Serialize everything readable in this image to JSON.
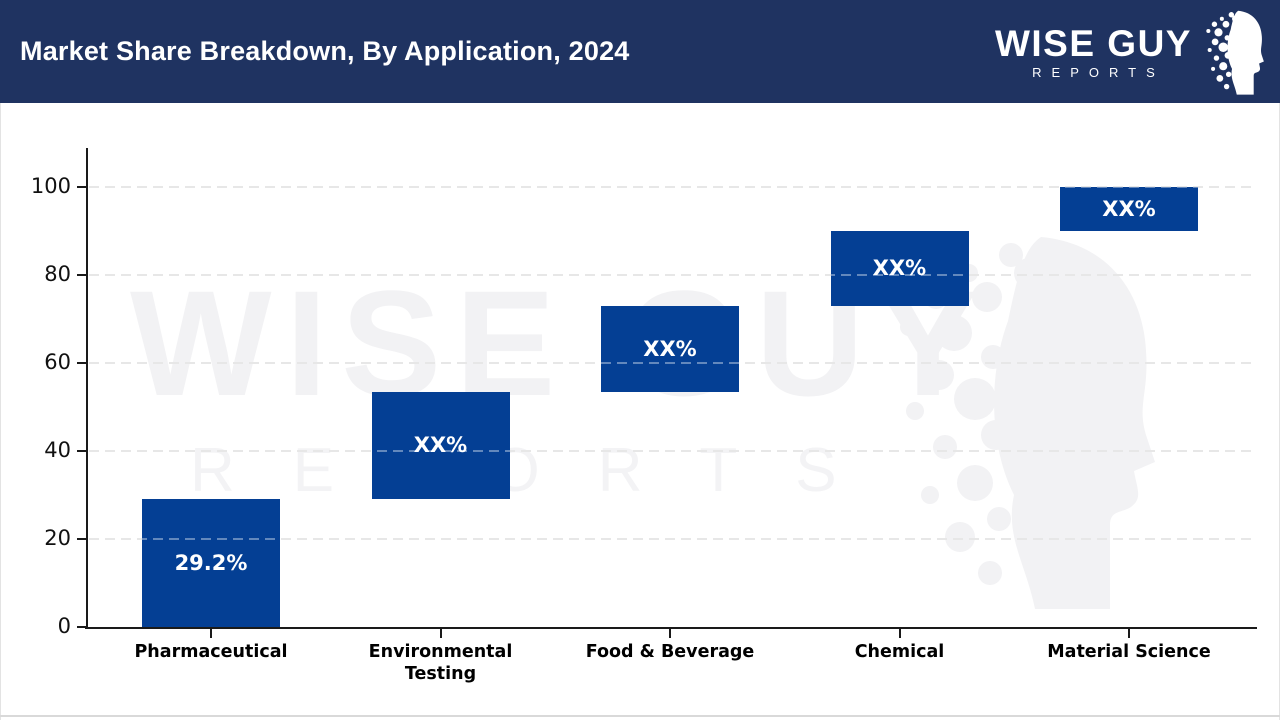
{
  "header": {
    "title": "Market Share Breakdown, By Application, 2024",
    "logo": {
      "wordmark": "WISE GUY",
      "subtext": "REPORTS",
      "icon": "face-profile-dots-icon"
    }
  },
  "watermark": {
    "wordmark": "WISE GUY",
    "subtext": "REPORTS",
    "icon": "face-profile-dots-icon"
  },
  "chart_data": {
    "type": "bar",
    "variant": "waterfall",
    "title": "Market Share Breakdown, By Application, 2024",
    "categories": [
      "Pharmaceutical",
      "Environmental\nTesting",
      "Food & Beverage",
      "Chemical",
      "Material Science"
    ],
    "segments": [
      {
        "category": "Pharmaceutical",
        "from": 0,
        "to": 29.2,
        "value": 29.2,
        "label": "29.2%"
      },
      {
        "category": "Environmental Testing",
        "from": 29.2,
        "to": 53.5,
        "value": 24.3,
        "label": "XX%"
      },
      {
        "category": "Food & Beverage",
        "from": 53.5,
        "to": 73,
        "value": 19.5,
        "label": "XX%"
      },
      {
        "category": "Chemical",
        "from": 73,
        "to": 90,
        "value": 17,
        "label": "XX%"
      },
      {
        "category": "Material Science",
        "from": 90,
        "to": 100,
        "value": 10,
        "label": "XX%"
      }
    ],
    "yticks": [
      0,
      20,
      40,
      60,
      80,
      100
    ],
    "ylim": [
      0,
      108
    ],
    "xlabel": "",
    "ylabel": "",
    "legend": "none",
    "grid": "horizontal-dashed",
    "bar_color": "#043f94",
    "bar_label_color": "#ffffff",
    "axis_color": "#1a1a1a",
    "gridline_color": "#d9d9d9",
    "header_bg": "#1f3361"
  }
}
